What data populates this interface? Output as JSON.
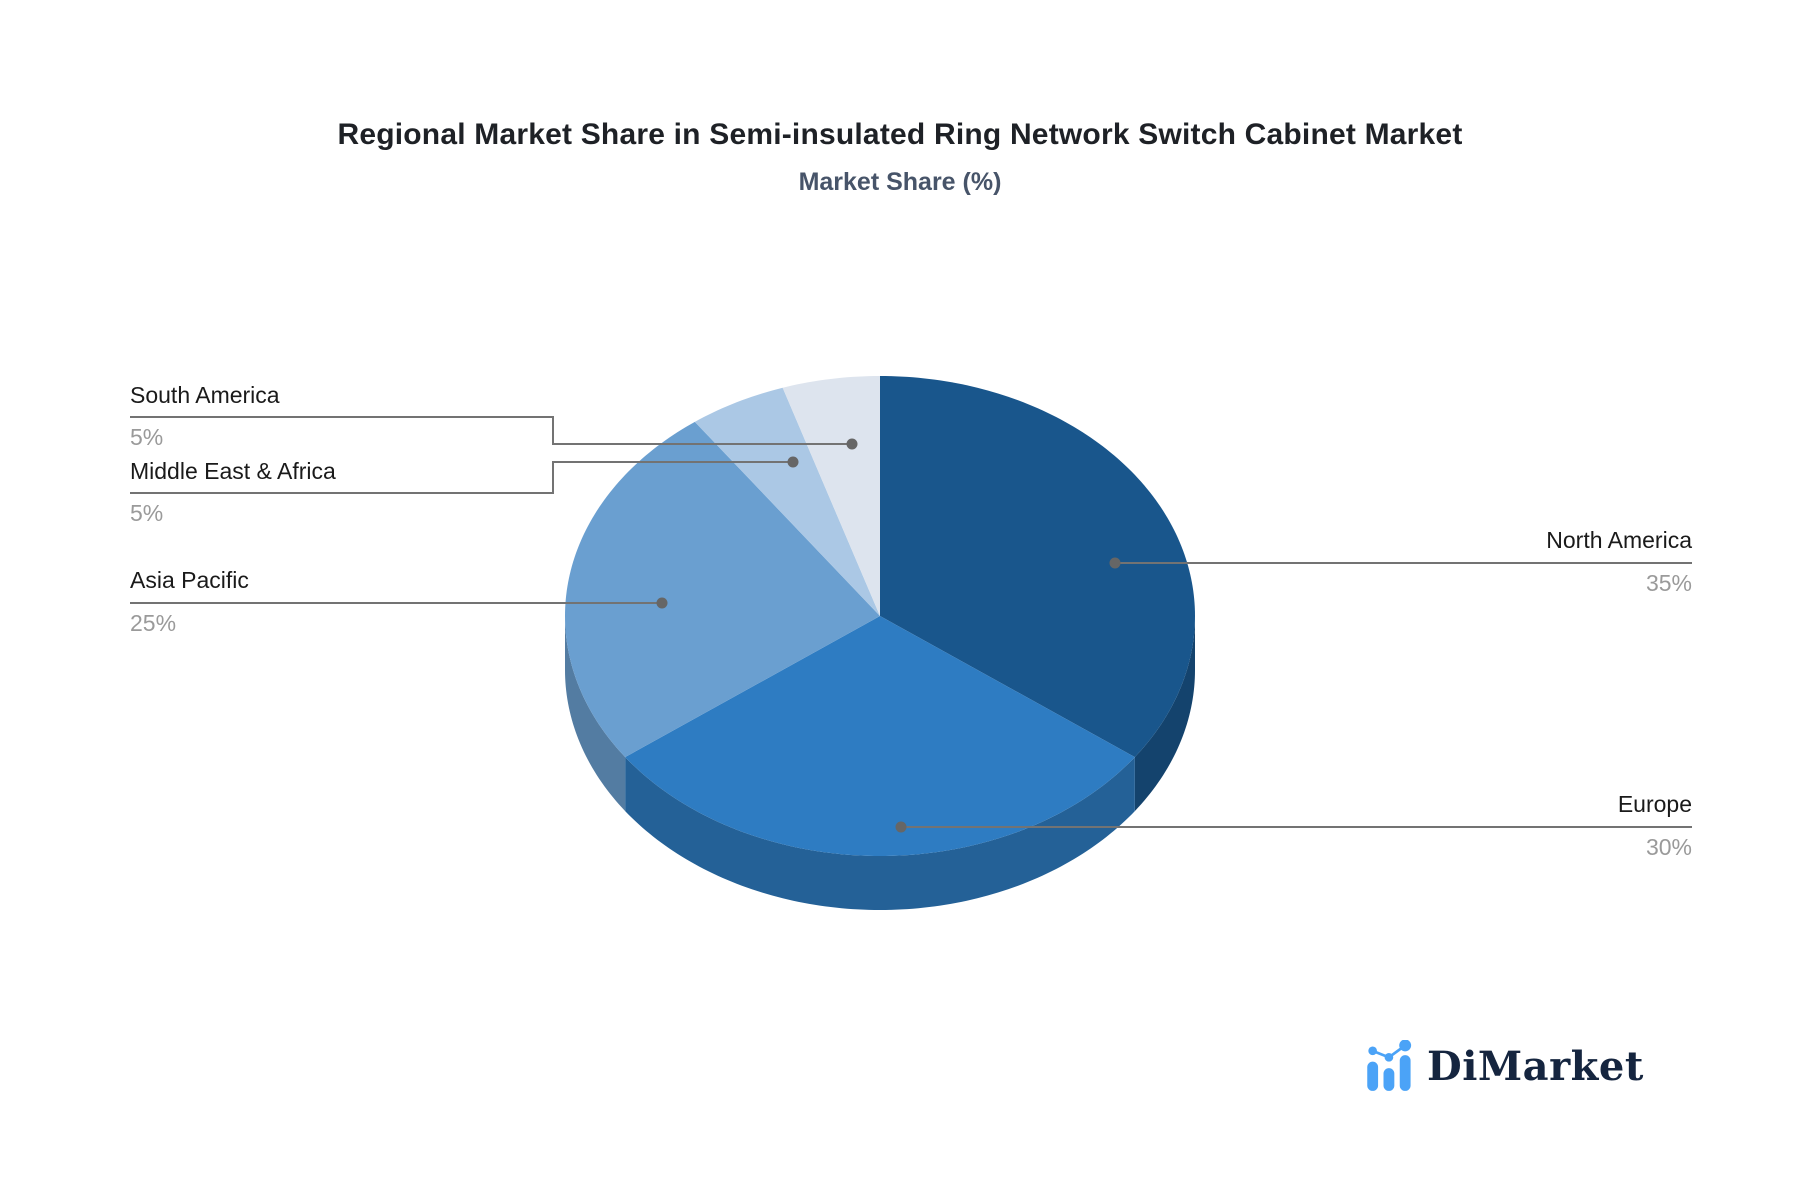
{
  "header": {
    "title": "Regional Market Share in Semi-insulated Ring Network Switch Cabinet Market",
    "subtitle": "Market Share (%)"
  },
  "chart_data": {
    "type": "pie",
    "style": "3d",
    "title": "Regional Market Share in Semi-insulated Ring Network Switch Cabinet Market",
    "subtitle": "Market Share (%)",
    "unit": "%",
    "start_angle_deg": 0,
    "direction": "clockwise",
    "legend": "none",
    "label_line_color": "#737373",
    "label_dot_color": "#666666",
    "slices": [
      {
        "label": "North America",
        "value": 35,
        "value_label": "35%",
        "color": "#19568c",
        "label_side": "right"
      },
      {
        "label": "Europe",
        "value": 30,
        "value_label": "30%",
        "color": "#2e7cc2",
        "label_side": "right"
      },
      {
        "label": "Asia Pacific",
        "value": 25,
        "value_label": "25%",
        "color": "#6a9fd0",
        "label_side": "left"
      },
      {
        "label": "Middle East & Africa",
        "value": 5,
        "value_label": "5%",
        "color": "#abc8e5",
        "label_side": "left"
      },
      {
        "label": "South America",
        "value": 5,
        "value_label": "5%",
        "color": "#dde4ee",
        "label_side": "left"
      }
    ]
  },
  "branding": {
    "logo_text": "DiMarket",
    "logo_color": "#15253f",
    "logo_icon_color": "#4ba3f7"
  }
}
